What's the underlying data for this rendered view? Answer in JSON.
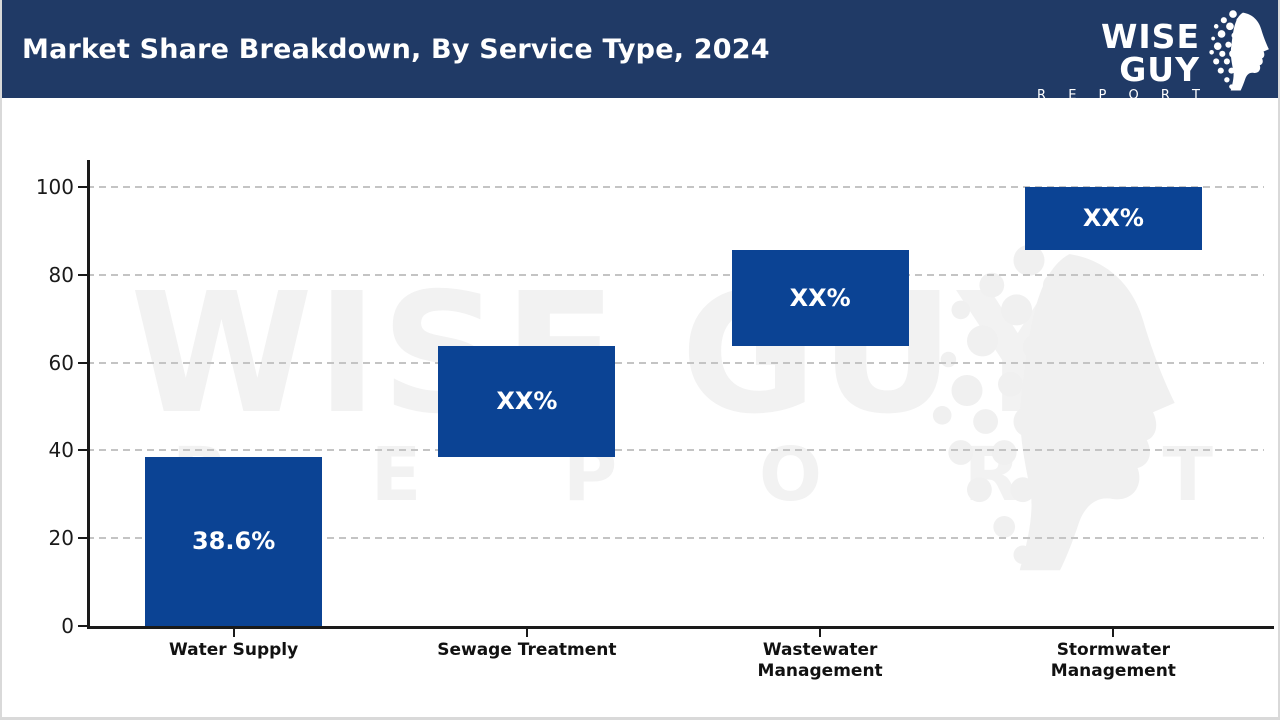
{
  "header": {
    "title": "Market Share Breakdown, By Service Type, 2024",
    "bg_color": "#203a66",
    "logo": {
      "brand_top": "WISE GUY",
      "brand_bottom": "R E P O R T S"
    }
  },
  "watermark": {
    "line1": "WISE GUY",
    "line2": "R E P O R T S"
  },
  "chart_data": {
    "type": "bar",
    "subtype": "waterfall",
    "title": "Market Share Breakdown, By Service Type, 2024",
    "categories": [
      "Water Supply",
      "Sewage Treatment",
      "Wastewater Management",
      "Stormwater Management"
    ],
    "series": [
      {
        "name": "Market Share",
        "segments": [
          {
            "category": "Water Supply",
            "start": 0,
            "end": 38.6,
            "value": 38.6,
            "label": "38.6%"
          },
          {
            "category": "Sewage Treatment",
            "start": 38.6,
            "end": 63.8,
            "value": 25.2,
            "label": "XX%"
          },
          {
            "category": "Wastewater Management",
            "start": 63.8,
            "end": 85.7,
            "value": 21.9,
            "label": "XX%"
          },
          {
            "category": "Stormwater Management",
            "start": 85.7,
            "end": 100,
            "value": 14.3,
            "label": "XX%"
          }
        ]
      }
    ],
    "xlabel": "",
    "ylabel": "",
    "ylim": [
      0,
      100
    ],
    "yticks": [
      0,
      20,
      40,
      60,
      80,
      100
    ],
    "grid": "horizontal-dashed",
    "legend": "none",
    "bar_color": "#0b4394",
    "bar_label_color": "#ffffff",
    "grid_color": "#c4c4c4",
    "axis_color": "#1a1a1a"
  }
}
